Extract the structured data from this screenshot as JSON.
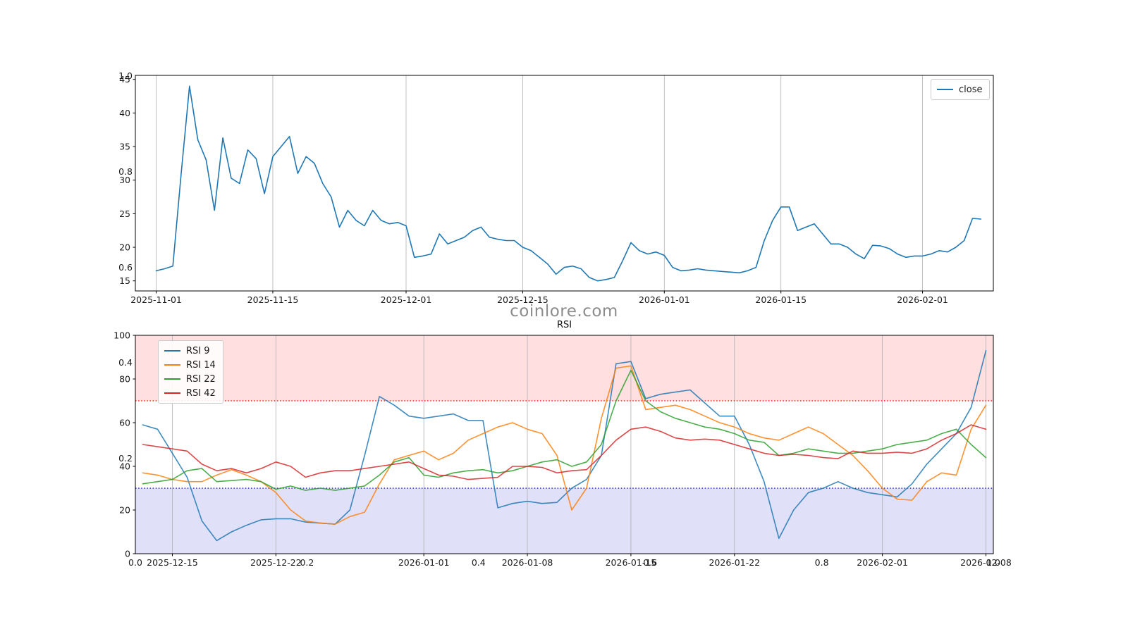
{
  "watermark": "coinlore.com",
  "colors": {
    "grid": "#b0b0b0",
    "spine": "#000000",
    "tick_text": "#1a1a1a",
    "overbought_band": "rgba(255,40,40,0.15)",
    "oversold_band": "rgba(60,60,220,0.16)"
  },
  "overlay_axis": {
    "yticks": [
      "1.0",
      "0.8",
      "0.6",
      "0.4",
      "0.2"
    ],
    "xticks": [
      "0.0",
      "0.2",
      "0.4",
      "0.6",
      "0.8",
      "1.0"
    ]
  },
  "chart_data": [
    {
      "type": "line",
      "title": "",
      "x_start_date": "2025-11-01",
      "x_tick_labels": [
        "2025-11-01",
        "2025-11-15",
        "2025-12-01",
        "2025-12-15",
        "2026-01-01",
        "2026-01-15",
        "2026-02-01"
      ],
      "x_tick_indices": [
        0,
        14,
        30,
        44,
        61,
        75,
        92
      ],
      "ylim": [
        13.5,
        45.6
      ],
      "yticks": [
        15,
        20,
        25,
        30,
        35,
        40,
        45
      ],
      "grid": "vertical",
      "legend_position": "top-right",
      "series": [
        {
          "name": "close",
          "color": "#1f77b4",
          "values": [
            16.5,
            16.8,
            17.2,
            31,
            44,
            36,
            33,
            25.5,
            36.3,
            30.3,
            29.5,
            34.5,
            33.2,
            28,
            33.5,
            35,
            36.5,
            31,
            33.5,
            32.5,
            29.5,
            27.5,
            23,
            25.5,
            24,
            23.2,
            25.5,
            24,
            23.5,
            23.7,
            23.2,
            18.5,
            18.7,
            19,
            22,
            20.5,
            21,
            21.5,
            22.5,
            23,
            21.5,
            21.2,
            21,
            21,
            20,
            19.5,
            18.5,
            17.5,
            16,
            17,
            17.2,
            16.8,
            15.5,
            15,
            15.2,
            15.5,
            18,
            20.7,
            19.5,
            19,
            19.3,
            18.8,
            17,
            16.5,
            16.6,
            16.8,
            16.6,
            16.5,
            16.4,
            16.3,
            16.2,
            16.5,
            17,
            21,
            24,
            26,
            26,
            22.5,
            23,
            23.5,
            22,
            20.5,
            20.5,
            20,
            19,
            18.3,
            20.3,
            20.2,
            19.8,
            19,
            18.5,
            18.7,
            18.7,
            19,
            19.5,
            19.3,
            20,
            21,
            24.3,
            24.2
          ]
        }
      ]
    },
    {
      "type": "line",
      "title": "RSI",
      "x_start_date": "2025-12-13",
      "x_tick_labels": [
        "2025-12-15",
        "2025-12-22",
        "2026-01-01",
        "2026-01-08",
        "2026-01-15",
        "2026-01-22",
        "2026-02-01",
        "2026-02-08"
      ],
      "x_tick_indices": [
        2,
        9,
        19,
        26,
        33,
        40,
        50,
        57
      ],
      "ylim": [
        0,
        100
      ],
      "yticks": [
        0,
        20,
        40,
        60,
        80,
        100
      ],
      "grid": "vertical",
      "legend_position": "top-left",
      "bands": [
        {
          "from": 70,
          "to": 100,
          "color": "rgba(255,40,40,0.15)",
          "meaning": "overbought"
        },
        {
          "from": 0,
          "to": 30,
          "color": "rgba(60,60,220,0.16)",
          "meaning": "oversold"
        }
      ],
      "hlines": [
        {
          "y": 70,
          "color": "#ff0000",
          "style": "dotted"
        },
        {
          "y": 30,
          "color": "#0000bb",
          "style": "dotted"
        }
      ],
      "series": [
        {
          "name": "RSI 9",
          "color": "#1f77b4",
          "values": [
            59,
            57,
            46,
            35,
            15,
            6,
            10,
            13,
            15.5,
            16,
            16,
            14.5,
            14,
            13.5,
            20,
            45,
            72,
            68,
            63,
            62,
            63,
            64,
            61,
            61,
            21,
            23,
            24,
            23,
            23.5,
            30,
            34,
            45,
            87,
            88,
            71,
            73,
            74,
            75,
            69,
            63,
            63,
            50,
            33,
            7,
            20,
            28,
            30,
            33,
            30,
            28,
            27,
            26,
            32,
            41,
            48,
            55,
            67,
            93
          ]
        },
        {
          "name": "RSI 14",
          "color": "#ff7f0e",
          "values": [
            37,
            36,
            34,
            33,
            33,
            36,
            38.5,
            36,
            33,
            28,
            20,
            15,
            14,
            13.5,
            17,
            19,
            32,
            43,
            45,
            47,
            43,
            46,
            52,
            55,
            58,
            60,
            57,
            55,
            45,
            20,
            30,
            62,
            85,
            86,
            66,
            67,
            68,
            66,
            63,
            60,
            58,
            55,
            53,
            52,
            55,
            58,
            55,
            50,
            45,
            38,
            30,
            25,
            24.5,
            33,
            37,
            36,
            57,
            68
          ]
        },
        {
          "name": "RSI 22",
          "color": "#2ca02c",
          "values": [
            32,
            33,
            34,
            38,
            39,
            33,
            33.5,
            34,
            33,
            29.5,
            31,
            29,
            30,
            29,
            30,
            31,
            36,
            42,
            44,
            36,
            35,
            37,
            38,
            38.5,
            37,
            38,
            40,
            42,
            43,
            40,
            42,
            50,
            70,
            84,
            70,
            65,
            62,
            60,
            58,
            57,
            55,
            52,
            51,
            45,
            46,
            48,
            47,
            46,
            46,
            47,
            48,
            50,
            51,
            52,
            55,
            57,
            50,
            44
          ]
        },
        {
          "name": "RSI 42",
          "color": "#d62728",
          "values": [
            50,
            49,
            48,
            47,
            41,
            38,
            39,
            37,
            39,
            42,
            40,
            35,
            37,
            38,
            38,
            39,
            40,
            41,
            42,
            39,
            36,
            35.5,
            34,
            34.5,
            35,
            40,
            40,
            39.5,
            37,
            38,
            38.5,
            45,
            52,
            57,
            58,
            56,
            53,
            52,
            52.5,
            52,
            50,
            48,
            46,
            45,
            45.5,
            45,
            44,
            43.5,
            47,
            46,
            46,
            46.5,
            46,
            48,
            52,
            55,
            59,
            57
          ]
        }
      ]
    }
  ]
}
